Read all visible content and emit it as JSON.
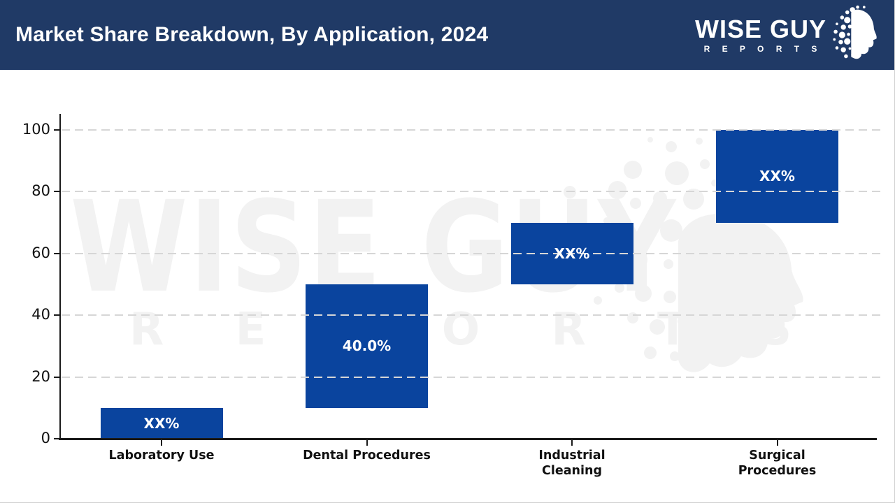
{
  "header": {
    "title": "Market Share Breakdown, By Application, 2024",
    "logo": {
      "line1": "WISE GUY",
      "line2": "R E P O R T S"
    }
  },
  "watermark": {
    "line1": "WISE GUY",
    "line2": "R E P O R T S"
  },
  "colors": {
    "header_bg": "#203a66",
    "bar": "#0a449e",
    "bar_label": "#ffffff",
    "grid": "#d6d6d6",
    "axis": "#1a1a1a",
    "watermark": "#f2f2f2",
    "border": "#cfcfcf"
  },
  "chart_data": {
    "type": "bar",
    "subtype": "waterfall",
    "title": "Market Share Breakdown, By Application, 2024",
    "categories": [
      "Laboratory Use",
      "Dental Procedures",
      "Industrial\nCleaning",
      "Surgical\nProcedures"
    ],
    "values": [
      10,
      40,
      20,
      30
    ],
    "segments": [
      {
        "category": "Laboratory Use",
        "start": 0,
        "end": 10,
        "value_label": "XX%"
      },
      {
        "category": "Dental Procedures",
        "start": 10,
        "end": 50,
        "value_label": "40.0%"
      },
      {
        "category": "Industrial\nCleaning",
        "start": 50,
        "end": 70,
        "value_label": "XX%"
      },
      {
        "category": "Surgical\nProcedures",
        "start": 70,
        "end": 100,
        "value_label": "XX%"
      }
    ],
    "yticks": [
      0,
      20,
      40,
      60,
      80,
      100
    ],
    "ylim": [
      0,
      105
    ],
    "xlabel": "",
    "ylabel": "",
    "grid": "horizontal-dashed",
    "legend": "none"
  }
}
